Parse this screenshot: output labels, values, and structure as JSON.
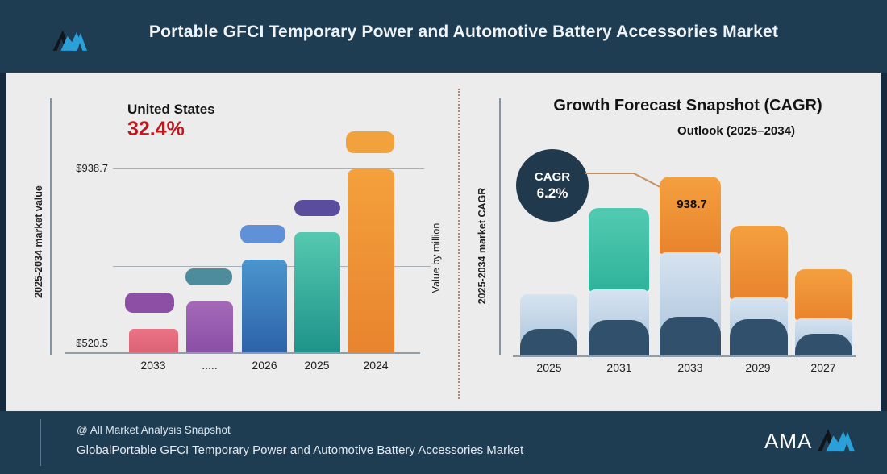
{
  "header": {
    "title": "Portable GFCI Temporary Power and Automotive Battery Accessories Market"
  },
  "chart_data": [
    {
      "type": "bar",
      "title": "United States",
      "annotation": "32.4%",
      "categories": [
        "2033",
        ".....",
        "2026",
        "2025",
        "2024"
      ],
      "values": [
        574,
        636,
        731,
        794,
        937
      ],
      "y_ticks": [
        "$938.7",
        "$520.5"
      ],
      "ylim": [
        520.5,
        938.7
      ],
      "ylabel": "2025-2034 market value",
      "ylabel_right": "Value by million",
      "xlabel": "",
      "grid": "two horizontal gridlines",
      "legend": "none"
    },
    {
      "type": "bar",
      "title": "Growth Forecast Snapshot (CAGR)",
      "subtitle": "Outlook (2025–2034)",
      "badge": {
        "label": "CAGR",
        "value": "6.2%"
      },
      "categories": [
        "2025",
        "2031",
        "2033",
        "2029",
        "2027"
      ],
      "series": [
        {
          "name": "dark-base",
          "values": [
            33,
            44,
            48,
            45,
            27
          ]
        },
        {
          "name": "light-mid",
          "values": [
            43,
            38,
            80,
            27,
            19
          ]
        },
        {
          "name": "colored-top",
          "values": [
            0,
            103,
            96,
            91,
            63
          ]
        }
      ],
      "data_label": {
        "category": "2033",
        "value": "938.7"
      },
      "ylabel": "2025-2034 market CAGR",
      "xlabel": "",
      "grid": "off",
      "legend": "none",
      "unit": "relative height, axis unlabeled"
    }
  ],
  "footer": {
    "line1": "@ All Market Analysis Snapshot",
    "line2": "GlobalPortable GFCI Temporary Power and Automotive Battery Accessories Market",
    "brand": "AMA"
  },
  "colors": {
    "header_bg": "#1E3D53",
    "body_bg": "#ECECEC",
    "accent_red": "#C2151C",
    "badge_navy": "#21394D",
    "connector": "#C88F60",
    "bar_pink": "#E26B7C",
    "bar_purple": "#8A4FA6",
    "bar_blue": "#2D62A9",
    "bar_teal": "#1E9389",
    "bar_orange": "#EF9133",
    "stack_base_navy": "#30506C",
    "stack_mid_lightblue": "#BDD2E4",
    "stack_top_teal": "#3FC2A7",
    "stack_top_orange": "#F0923A"
  }
}
